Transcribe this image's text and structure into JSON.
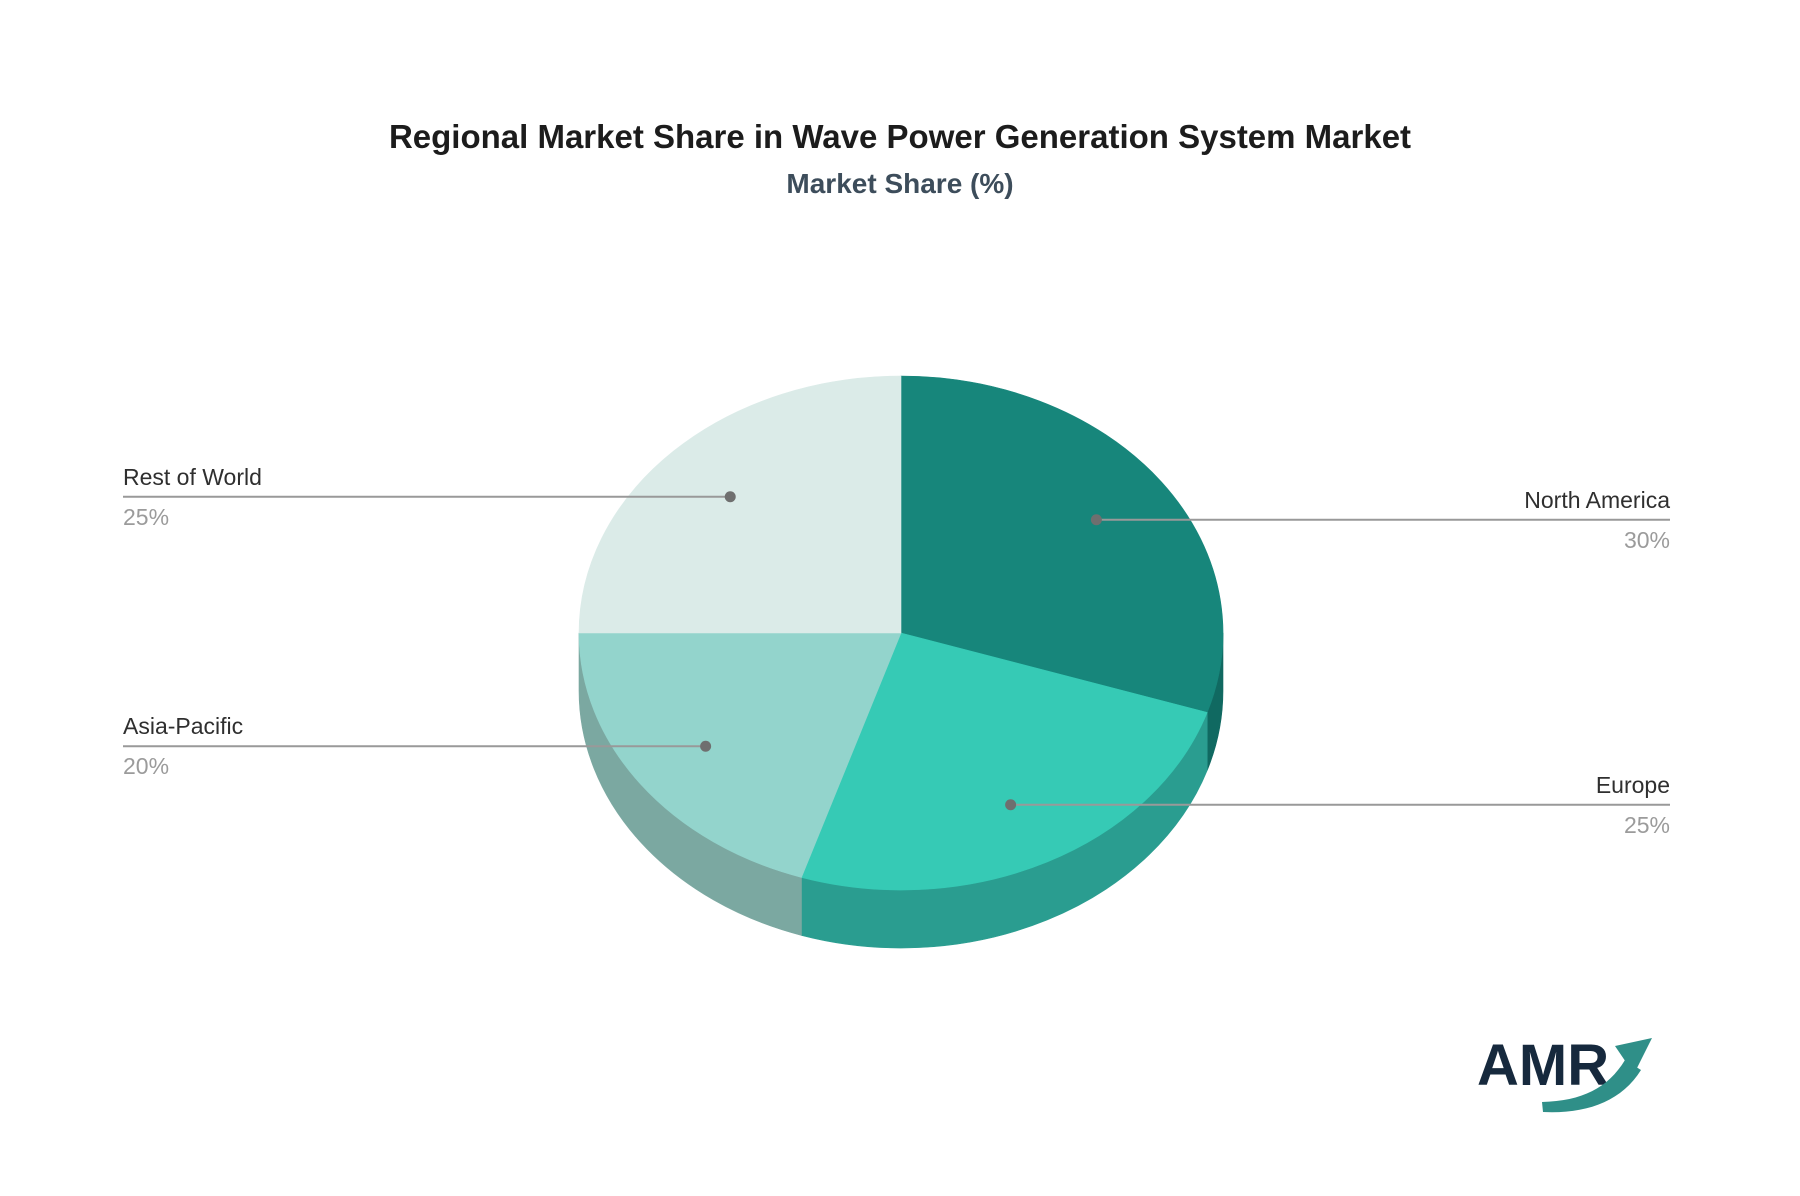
{
  "title": "Regional Market Share in Wave Power Generation System Market",
  "subtitle": "Market Share (%)",
  "logo": {
    "text": "AMR"
  },
  "colors": {
    "background": "#FFFFFF",
    "title_color": "#1C1C1C",
    "subtitle_color": "#3D4D5B",
    "label_color": "#2F2F2F",
    "value_color": "#9B9B9B",
    "leader_line": "#999999",
    "leader_dot": "#6F6F6F",
    "logo_text": "#16293D",
    "logo_arrow": "#2F8F88"
  },
  "chart_data": {
    "type": "pie",
    "title": "Regional Market Share in Wave Power Generation System Market",
    "subtitle": "Market Share (%)",
    "unit": "%",
    "style": "3d-pie",
    "direction": "clockwise",
    "start_angle": "top (12 o'clock)",
    "legend_position": "none (leader-line labels)",
    "categories": [
      "North America",
      "Europe",
      "Asia-Pacific",
      "Rest of World"
    ],
    "values": [
      30,
      25,
      20,
      25
    ],
    "slices": [
      {
        "label": "North America",
        "value": 30,
        "value_label": "30%",
        "color": "#17867B",
        "side_color": "#106961",
        "label_side": "right"
      },
      {
        "label": "Europe",
        "value": 25,
        "value_label": "25%",
        "color": "#36CAB5",
        "side_color": "#2A9D90",
        "label_side": "right"
      },
      {
        "label": "Asia-Pacific",
        "value": 20,
        "value_label": "20%",
        "color": "#93D4CC",
        "side_color": "#7BA8A1",
        "label_side": "left"
      },
      {
        "label": "Rest of World",
        "value": 25,
        "value_label": "25%",
        "color": "#DBEBE8",
        "side_color": "#C2DAD6",
        "label_side": "left"
      }
    ]
  }
}
